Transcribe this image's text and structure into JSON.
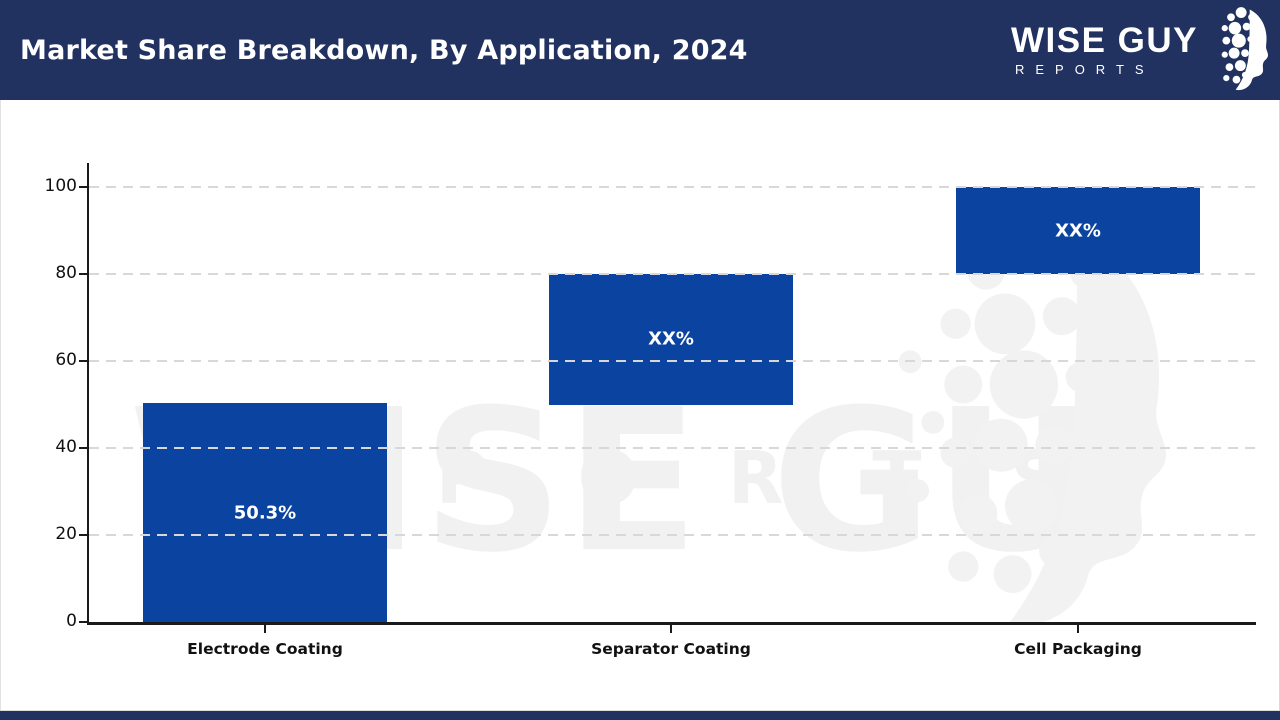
{
  "header": {
    "title": "Market Share Breakdown, By Application, 2024",
    "logo": {
      "primary": "WISE GUY",
      "secondary": "REPORTS"
    }
  },
  "watermark": {
    "line1": "WISE GU",
    "line2": "R E P O R T S"
  },
  "chart_data": {
    "type": "bar",
    "variant": "floating-stacked-breakdown",
    "title": "Market Share Breakdown, By Application, 2024",
    "categories": [
      "Electrode Coating",
      "Separator Coating",
      "Cell Packaging"
    ],
    "segments": [
      {
        "category": "Electrode Coating",
        "start": 0,
        "end": 50.3,
        "label": "50.3%"
      },
      {
        "category": "Separator Coating",
        "start": 50,
        "end": 80,
        "label": "XX%"
      },
      {
        "category": "Cell Packaging",
        "start": 80,
        "end": 100,
        "label": "XX%"
      }
    ],
    "xlabel": "",
    "ylabel": "",
    "ylim": [
      0,
      100
    ],
    "yticks": [
      0,
      20,
      40,
      60,
      80,
      100
    ],
    "grid": "horizontal-dashed",
    "legend": "none",
    "colors": {
      "bar": "#0b44a0",
      "bar_label": "#ffffff",
      "axis": "#1a1a1a",
      "gridline": "#d8d8d8",
      "header_bg": "#213261",
      "footer_bg": "#213261",
      "watermark": "#f1f1f1"
    }
  }
}
